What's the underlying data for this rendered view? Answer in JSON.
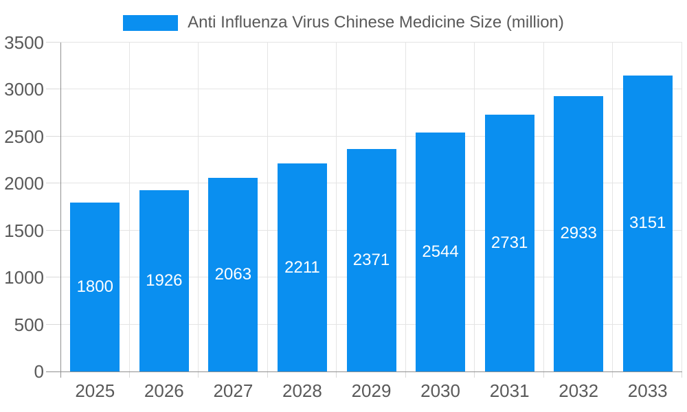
{
  "legend": {
    "label": "Anti Influenza Virus Chinese Medicine Size (million)"
  },
  "chart_data": {
    "type": "bar",
    "title": "Anti Influenza Virus Chinese Medicine Size (million)",
    "categories": [
      "2025",
      "2026",
      "2027",
      "2028",
      "2029",
      "2030",
      "2031",
      "2032",
      "2033"
    ],
    "values": [
      1800,
      1926,
      2063,
      2211,
      2371,
      2544,
      2731,
      2933,
      3151
    ],
    "xlabel": "",
    "ylabel": "",
    "ylim": [
      0,
      3500
    ],
    "yticks": [
      0,
      500,
      1000,
      1500,
      2000,
      2500,
      3000,
      3500
    ],
    "grid": true,
    "legend_position": "top-center",
    "bar_label_position": "inside-center",
    "colors": {
      "bar": "#0a8ff0",
      "bar_label": "#ffffff",
      "axis_text": "#595959",
      "grid_line": "#e4e4e4",
      "tick_line": "#d9d9d9",
      "axis_line": "#8f8f8f",
      "background": "#ffffff"
    }
  }
}
